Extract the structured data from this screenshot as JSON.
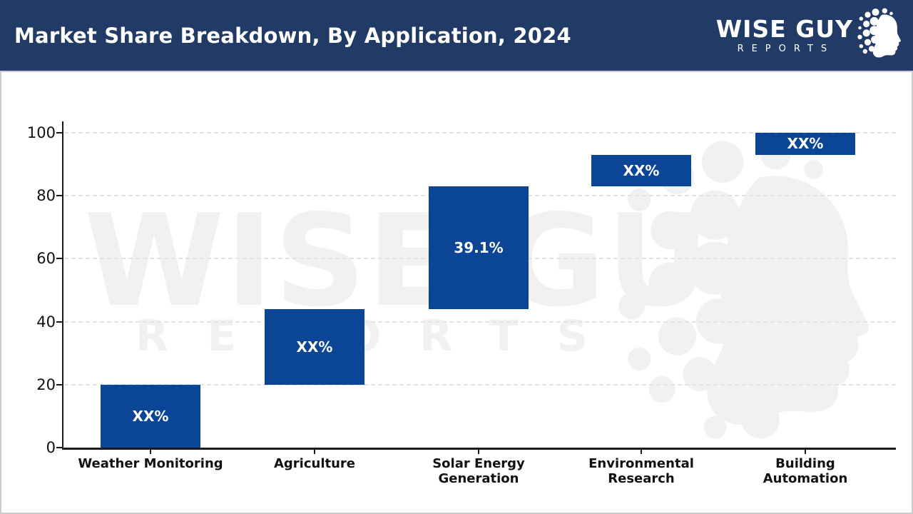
{
  "header": {
    "title": "Market Share Breakdown, By Application, 2024",
    "bg_color": "#213a66",
    "logo": {
      "line1": "WISE GUY",
      "line2": "REPORTS"
    }
  },
  "watermark": {
    "line1": "WISE GUY",
    "line2": "REPORTS"
  },
  "chart_data": {
    "type": "bar",
    "subtype": "waterfall",
    "title": "Market Share Breakdown, By Application, 2024",
    "categories": [
      "Weather Monitoring",
      "Agriculture",
      "Solar Energy Generation",
      "Environmental Research",
      "Building Automation"
    ],
    "segments": [
      {
        "category": "Weather Monitoring",
        "category_lines": [
          "Weather Monitoring"
        ],
        "start": 0,
        "end": 20,
        "label": "XX%"
      },
      {
        "category": "Agriculture",
        "category_lines": [
          "Agriculture"
        ],
        "start": 20,
        "end": 44,
        "label": "XX%"
      },
      {
        "category": "Solar Energy Generation",
        "category_lines": [
          "Solar Energy",
          "Generation"
        ],
        "start": 44,
        "end": 83.1,
        "label": "39.1%",
        "value": 39.1
      },
      {
        "category": "Environmental Research",
        "category_lines": [
          "Environmental",
          "Research"
        ],
        "start": 83.1,
        "end": 93,
        "label": "XX%"
      },
      {
        "category": "Building Automation",
        "category_lines": [
          "Building",
          "Automation"
        ],
        "start": 93,
        "end": 100,
        "label": "XX%"
      }
    ],
    "y_ticks": [
      0,
      20,
      40,
      60,
      80,
      100
    ],
    "ylim": [
      0,
      104
    ],
    "xlabel": "",
    "ylabel": "",
    "grid": "horizontal-dashed",
    "legend": "none",
    "bar_color": "#0b4596",
    "bar_label_color": "#ffffff"
  }
}
